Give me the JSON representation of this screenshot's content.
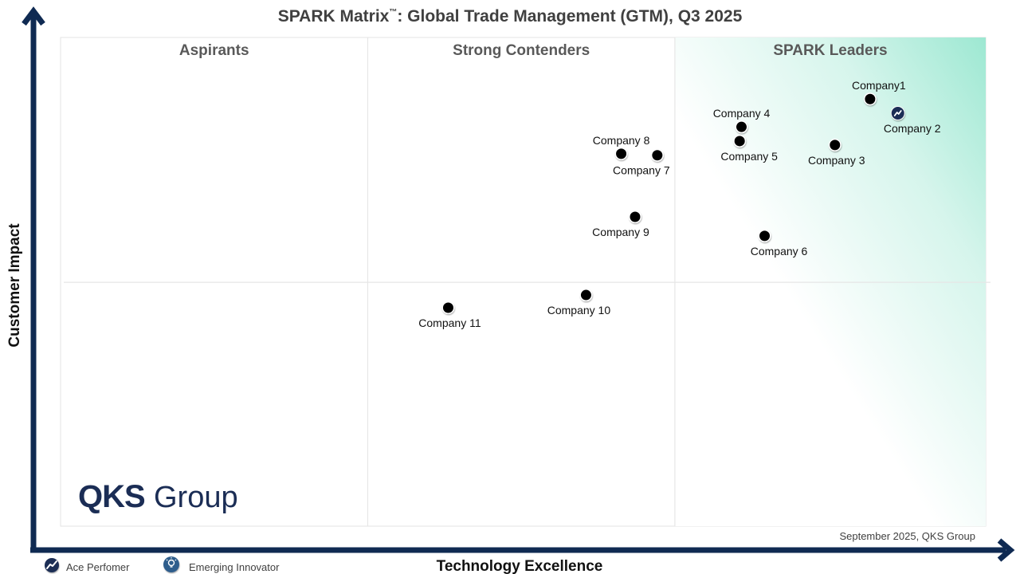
{
  "chart_data": {
    "type": "scatter",
    "title": "SPARK Matrix",
    "title_mark": "™",
    "title_rest": ": Global Trade Management (GTM), Q3 2025",
    "xlabel": "Technology Excellence",
    "ylabel": "Customer Impact",
    "xlim": [
      0,
      100
    ],
    "ylim": [
      0,
      100
    ],
    "grid": false,
    "quadrant_dividers": {
      "x": [
        33.2,
        66.4
      ],
      "y": [
        49.9
      ]
    },
    "quadrants": [
      {
        "label": "Aspirants"
      },
      {
        "label": "Strong Contenders"
      },
      {
        "label": "SPARK Leaders"
      }
    ],
    "points": [
      {
        "name": "Company1",
        "x": 87.5,
        "y": 87.4,
        "type": "standard",
        "label_pos": "above"
      },
      {
        "name": "Company 2",
        "x": 90.5,
        "y": 84.5,
        "type": "ace-performer",
        "label_pos": "below"
      },
      {
        "name": "Company 3",
        "x": 83.7,
        "y": 78.0,
        "type": "standard",
        "label_pos": "below"
      },
      {
        "name": "Company 4",
        "x": 73.6,
        "y": 81.7,
        "type": "standard",
        "label_pos": "above"
      },
      {
        "name": "Company 5",
        "x": 73.4,
        "y": 78.8,
        "type": "standard",
        "label_pos": "below"
      },
      {
        "name": "Company 6",
        "x": 76.1,
        "y": 59.4,
        "type": "standard",
        "label_pos": "below"
      },
      {
        "name": "Company 7",
        "x": 64.5,
        "y": 75.9,
        "type": "standard",
        "label_pos": "below"
      },
      {
        "name": "Company 8",
        "x": 60.6,
        "y": 76.2,
        "type": "standard",
        "label_pos": "above"
      },
      {
        "name": "Company 9",
        "x": 62.1,
        "y": 63.3,
        "type": "standard",
        "label_pos": "below"
      },
      {
        "name": "Company 10",
        "x": 56.8,
        "y": 47.3,
        "type": "standard",
        "label_pos": "below"
      },
      {
        "name": "Company 11",
        "x": 41.9,
        "y": 44.7,
        "type": "standard",
        "label_pos": "below"
      }
    ],
    "legend": [
      {
        "label": "Ace Perfomer",
        "icon": "trend-line-icon"
      },
      {
        "label": "Emerging Innovator",
        "icon": "lightbulb-icon"
      }
    ],
    "legend_position": "bottom-left",
    "footnote": "September 2025, QKS Group"
  },
  "branding": {
    "logo_bold": "QKS",
    "logo_light": "Group"
  },
  "colors": {
    "axis": "#0f2a52",
    "leader_gradient": "#9de8d2",
    "point": "#000000",
    "ace_badge": "#1b2d55",
    "innovator_badge": "#2f5d8c"
  }
}
